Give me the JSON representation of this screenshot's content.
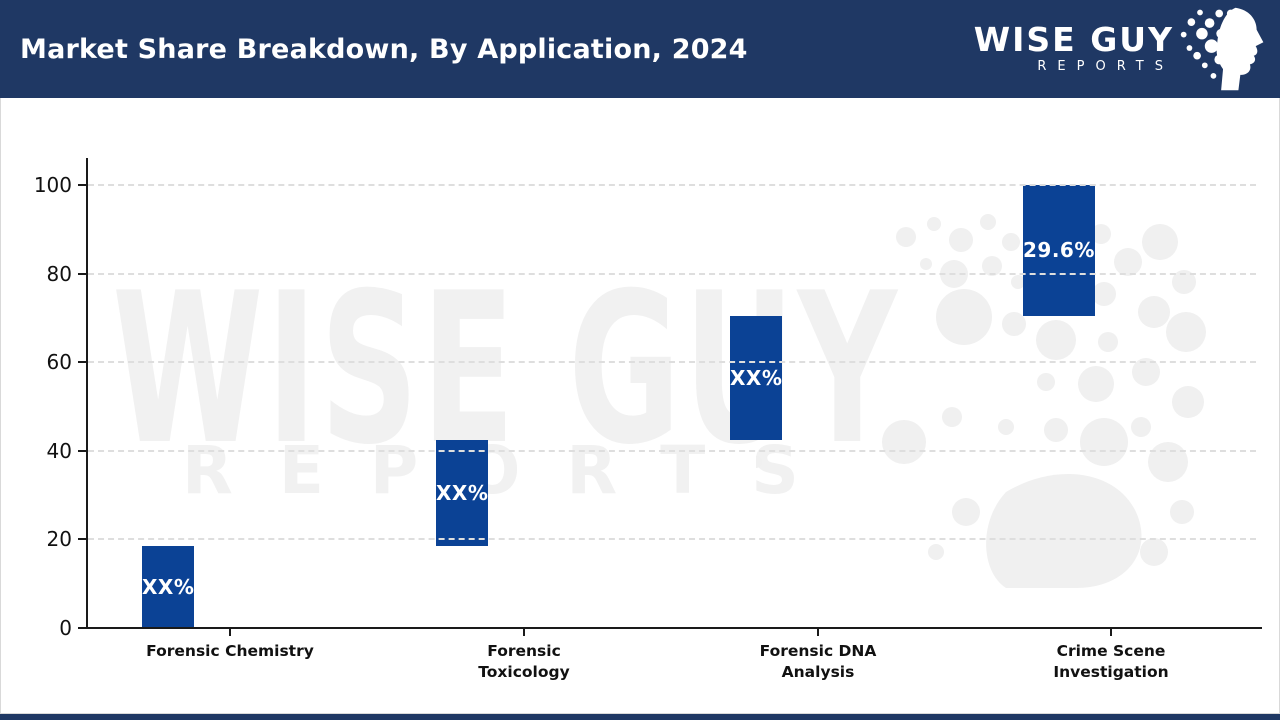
{
  "header": {
    "title": "Market Share Breakdown, By Application, 2024",
    "logo_line1": "WISE GUY",
    "logo_line2": "REPORTS",
    "bg_color": "#1f3864"
  },
  "watermark": {
    "line1": "WISE GUY",
    "line2": "REPORTS"
  },
  "chart_data": {
    "type": "bar",
    "subtype": "floating-segment-breakdown",
    "title": "Market Share Breakdown, By Application, 2024",
    "categories": [
      "Forensic Chemistry",
      "Forensic\nToxicology",
      "Forensic DNA\nAnalysis",
      "Crime Scene\nInvestigation"
    ],
    "segments": [
      {
        "category": "Forensic Chemistry",
        "start": 0,
        "end": 18.4,
        "label": "XX%"
      },
      {
        "category": "Forensic Toxicology",
        "start": 18.4,
        "end": 42.4,
        "label": "XX%"
      },
      {
        "category": "Forensic DNA Analysis",
        "start": 42.4,
        "end": 70.4,
        "label": "XX%"
      },
      {
        "category": "Crime Scene Investigation",
        "start": 70.4,
        "end": 100,
        "label": "29.6%"
      }
    ],
    "ylim": [
      0,
      100
    ],
    "yticks": [
      0,
      20,
      40,
      60,
      80,
      100
    ],
    "xlabel": "",
    "ylabel": "",
    "grid": "horizontal-dashed",
    "legend": "none",
    "bar_color": "#0b4295",
    "bar_label_color": "#ffffff",
    "grid_color": "#dedede",
    "axis_color": "#1a1a1a",
    "watermark_color": "#f1f1f1"
  }
}
